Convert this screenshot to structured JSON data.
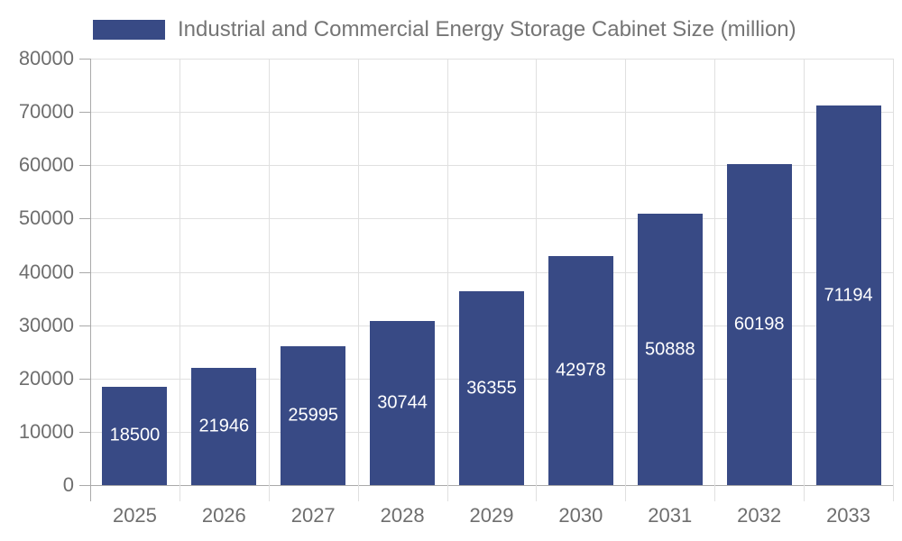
{
  "legend": {
    "label": "Industrial and Commercial Energy Storage Cabinet Size (million)",
    "swatch_color": "#384A85"
  },
  "chart_data": {
    "type": "bar",
    "title": "Industrial and Commercial Energy Storage Cabinet Size (million)",
    "categories": [
      "2025",
      "2026",
      "2027",
      "2028",
      "2029",
      "2030",
      "2031",
      "2032",
      "2033"
    ],
    "values": [
      18500,
      21946,
      25995,
      30744,
      36355,
      42978,
      50888,
      60198,
      71194
    ],
    "xlabel": "",
    "ylabel": "",
    "ylim": [
      0,
      80000
    ],
    "yticks": [
      0,
      10000,
      20000,
      30000,
      40000,
      50000,
      60000,
      70000,
      80000
    ],
    "grid": true,
    "legend_position": "top-left",
    "bar_color": "#384A85",
    "bar_value_label_color": "#ffffff",
    "axis_text_color": "#6e6e6e",
    "legend_text_color": "#757575",
    "gridline_color": "#e0e0e0",
    "axis_line_color": "#a9a9a9"
  }
}
